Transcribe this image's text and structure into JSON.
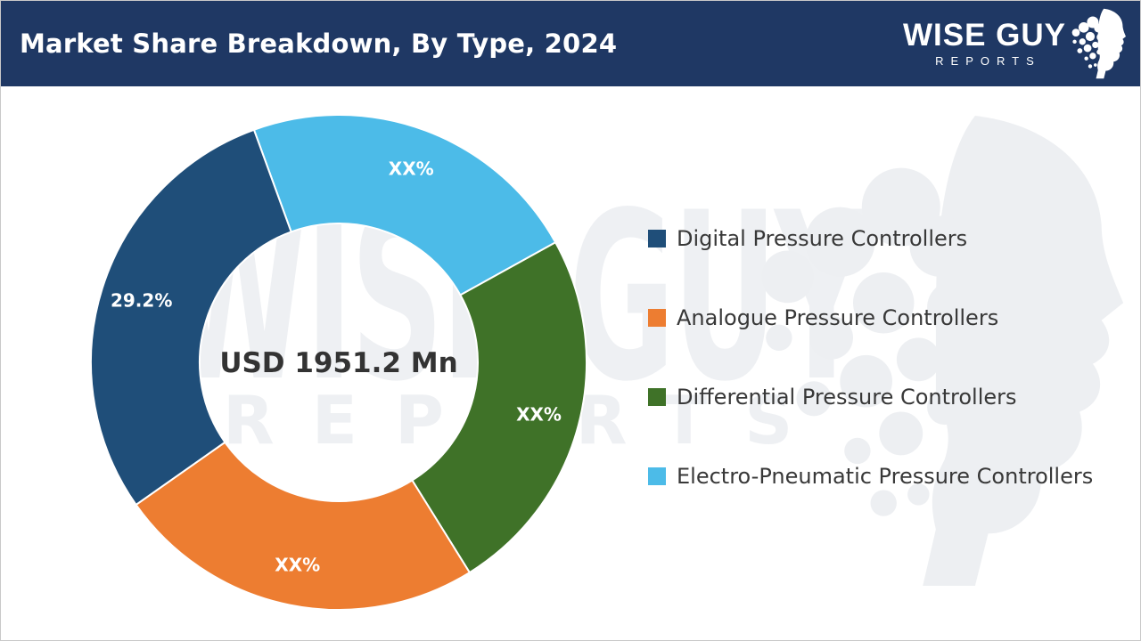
{
  "header": {
    "title": "Market Share Breakdown, By Type, 2024",
    "logo": {
      "line1": "WISE GUY",
      "line2": "REPORTS"
    }
  },
  "watermark": {
    "line1": "WISE GUY",
    "line2": "REPORTS"
  },
  "colors": {
    "header_bg": "#1f3864",
    "digital": "#1f4e79",
    "analogue": "#ed7d31",
    "differential": "#3f7228",
    "electro_pneumatic": "#4cbbe8"
  },
  "chart_data": {
    "type": "donut",
    "title": "Market Share Breakdown, By Type, 2024",
    "center_label": "USD 1951.2 Mn",
    "start_angle_deg": -20,
    "legend_position": "right",
    "slices": [
      {
        "label": "Electro-Pneumatic Pressure Controllers",
        "display_value": "XX%",
        "pct_estimated": 22.5,
        "color": "#4cbbe8"
      },
      {
        "label": "Differential Pressure Controllers",
        "display_value": "XX%",
        "pct_estimated": 24.2,
        "color": "#3f7228"
      },
      {
        "label": "Analogue Pressure Controllers",
        "display_value": "XX%",
        "pct_estimated": 24.1,
        "color": "#ed7d31"
      },
      {
        "label": "Digital Pressure Controllers",
        "display_value": "29.2%",
        "pct_estimated": 29.2,
        "color": "#1f4e79"
      }
    ],
    "legend": [
      {
        "label": "Digital Pressure Controllers",
        "color": "#1f4e79"
      },
      {
        "label": "Analogue Pressure Controllers",
        "color": "#ed7d31"
      },
      {
        "label": "Differential Pressure Controllers",
        "color": "#3f7228"
      },
      {
        "label": "Electro-Pneumatic Pressure Controllers",
        "color": "#4cbbe8"
      }
    ]
  }
}
